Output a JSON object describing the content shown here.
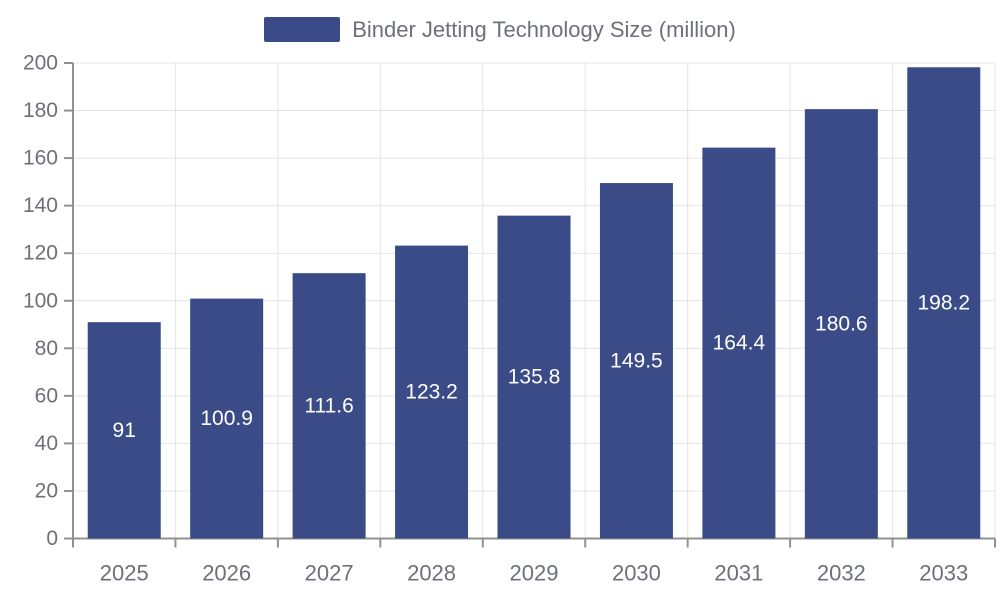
{
  "chart_data": {
    "type": "bar",
    "title": "",
    "xlabel": "",
    "ylabel": "",
    "categories": [
      "2025",
      "2026",
      "2027",
      "2028",
      "2029",
      "2030",
      "2031",
      "2032",
      "2033"
    ],
    "series": [
      {
        "name": "Binder Jetting Technology Size (million)",
        "values": [
          91,
          100.9,
          111.6,
          123.2,
          135.8,
          149.5,
          164.4,
          180.6,
          198.2
        ]
      }
    ],
    "ylim": [
      0,
      200
    ],
    "y_ticks": [
      0,
      20,
      40,
      60,
      80,
      100,
      120,
      140,
      160,
      180,
      200
    ],
    "grid": true,
    "legend_position": "top-center",
    "value_labels": "inside-center",
    "colors": {
      "bar": "#3a4b87",
      "value_label": "#ffffff",
      "axis_text": "#6e7079",
      "axis_line": "#919191",
      "gridline": "#e4e4e8",
      "background": "#ffffff"
    }
  }
}
